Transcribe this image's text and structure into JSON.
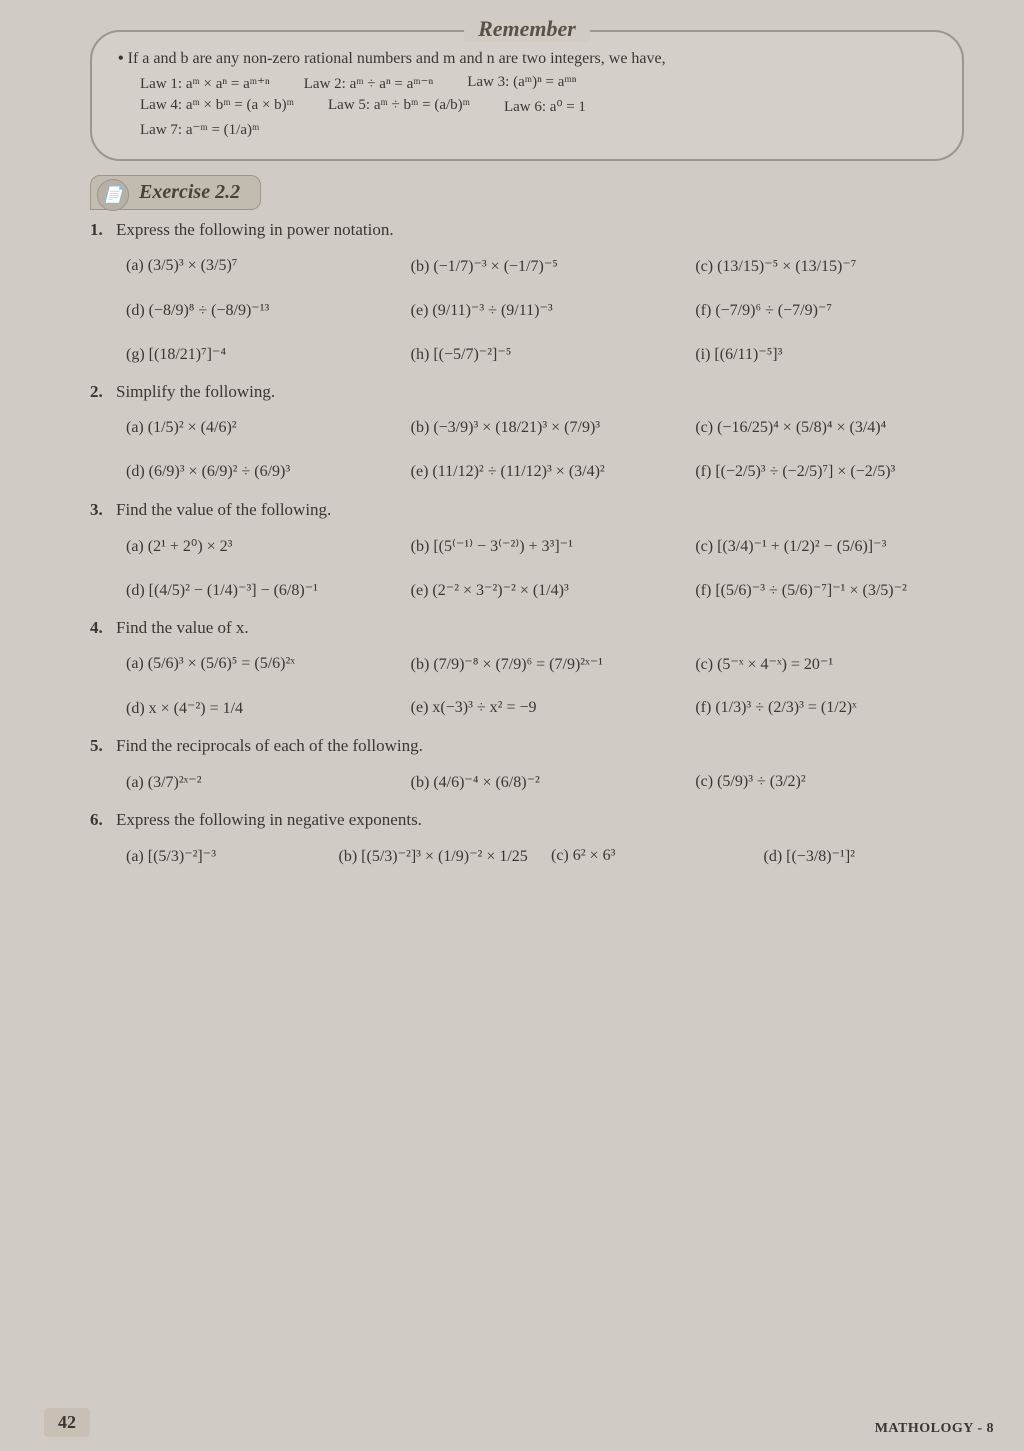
{
  "remember": {
    "title": "Remember",
    "intro": "If a and b are any non-zero rational numbers and m and n are two integers, we have,",
    "laws": [
      "Law 1: aᵐ × aⁿ = aᵐ⁺ⁿ",
      "Law 2: aᵐ ÷ aⁿ = aᵐ⁻ⁿ",
      "Law 3: (aᵐ)ⁿ = aᵐⁿ",
      "Law 4: aᵐ × bᵐ = (a × b)ᵐ",
      "Law 5: aᵐ ÷ bᵐ = (a/b)ᵐ",
      "Law 6: a⁰ = 1",
      "Law 7: a⁻ᵐ = (1/a)ᵐ"
    ]
  },
  "exercise": {
    "label": "Exercise 2.2"
  },
  "questions": [
    {
      "num": "1.",
      "text": "Express the following in power notation.",
      "parts": [
        "(a) (3/5)³ × (3/5)⁷",
        "(b) (−1/7)⁻³ × (−1/7)⁻⁵",
        "(c) (13/15)⁻⁵ × (13/15)⁻⁷",
        "(d) (−8/9)⁸ ÷ (−8/9)⁻¹³",
        "(e) (9/11)⁻³ ÷ (9/11)⁻³",
        "(f) (−7/9)⁶ ÷ (−7/9)⁻⁷",
        "(g) [(18/21)⁷]⁻⁴",
        "(h) [(−5/7)⁻²]⁻⁵",
        "(i) [(6/11)⁻⁵]³"
      ]
    },
    {
      "num": "2.",
      "text": "Simplify the following.",
      "parts": [
        "(a) (1/5)² × (4/6)²",
        "(b) (−3/9)³ × (18/21)³ × (7/9)³",
        "(c) (−16/25)⁴ × (5/8)⁴ × (3/4)⁴",
        "(d) (6/9)³ × (6/9)² ÷ (6/9)³",
        "(e) (11/12)² ÷ (11/12)³ × (3/4)²",
        "(f) [(−2/5)³ ÷ (−2/5)⁷] × (−2/5)³"
      ]
    },
    {
      "num": "3.",
      "text": "Find the value of the following.",
      "parts": [
        "(a) (2¹ + 2⁰) × 2³",
        "(b) [(5⁽⁻¹⁾ − 3⁽⁻²⁾) + 3³]⁻¹",
        "(c) [(3/4)⁻¹ + (1/2)² − (5/6)]⁻³",
        "(d) [(4/5)² − (1/4)⁻³] − (6/8)⁻¹",
        "(e) (2⁻² × 3⁻²)⁻² × (1/4)³",
        "(f) [(5/6)⁻³ ÷ (5/6)⁻⁷]⁻¹ × (3/5)⁻²"
      ]
    },
    {
      "num": "4.",
      "text": "Find the value of x.",
      "parts": [
        "(a) (5/6)³ × (5/6)⁵ = (5/6)²ˣ",
        "(b) (7/9)⁻⁸ × (7/9)⁶ = (7/9)²ˣ⁻¹",
        "(c) (5⁻ˣ × 4⁻ˣ) = 20⁻¹",
        "(d) x × (4⁻²) = 1/4",
        "(e) x(−3)³ ÷ x² = −9",
        "(f) (1/3)³ ÷ (2/3)³ = (1/2)ˣ"
      ]
    },
    {
      "num": "5.",
      "text": "Find the reciprocals of each of the following.",
      "parts": [
        "(a) (3/7)²ˣ⁻²",
        "(b) (4/6)⁻⁴ × (6/8)⁻²",
        "(c) (5/9)³ ÷ (3/2)²"
      ]
    },
    {
      "num": "6.",
      "text": "Express the following in negative exponents.",
      "cols": 4,
      "parts": [
        "(a) [(5/3)⁻²]⁻³",
        "(b) [(5/3)⁻²]³ × (1/9)⁻² × 1/25",
        "(c) 6² × 6³",
        "(d) [(−3/8)⁻¹]²"
      ]
    }
  ],
  "page_number": "42",
  "brand": "MATHOLOGY - 8"
}
